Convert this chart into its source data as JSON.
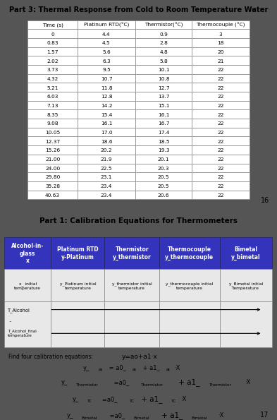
{
  "part3_title": "Part 3: Thermal Response from Cold to Room Temperature Water",
  "part3_headers": [
    "Time (s)",
    "Platinum RTD(°C)",
    "Thermistor(°C)",
    "Thermocouple (°C)"
  ],
  "part3_data": [
    [
      "0",
      "4.4",
      "0.9",
      "3"
    ],
    [
      "0.83",
      "4.5",
      "2.8",
      "18"
    ],
    [
      "1.57",
      "5.6",
      "4.8",
      "20"
    ],
    [
      "2.02",
      "6.3",
      "5.8",
      "21"
    ],
    [
      "3.73",
      "9.5",
      "10.1",
      "22"
    ],
    [
      "4.32",
      "10.7",
      "10.8",
      "22"
    ],
    [
      "5.21",
      "11.8",
      "12.7",
      "22"
    ],
    [
      "6.03",
      "12.8",
      "13.7",
      "22"
    ],
    [
      "7.13",
      "14.2",
      "15.1",
      "22"
    ],
    [
      "8.35",
      "15.4",
      "16.1",
      "22"
    ],
    [
      "9.08",
      "16.1",
      "16.7",
      "22"
    ],
    [
      "10.05",
      "17.0",
      "17.4",
      "22"
    ],
    [
      "12.37",
      "18.6",
      "18.5",
      "22"
    ],
    [
      "15.26",
      "20.2",
      "19.3",
      "22"
    ],
    [
      "21.00",
      "21.9",
      "20.1",
      "22"
    ],
    [
      "24.00",
      "22.5",
      "20.3",
      "22"
    ],
    [
      "29.80",
      "23.1",
      "20.5",
      "22"
    ],
    [
      "35.28",
      "23.4",
      "20.5",
      "22"
    ],
    [
      "40.63",
      "23.4",
      "20.6",
      "22"
    ]
  ],
  "part3_page": "16",
  "part1_title": "Part 1: Calibration Equations for Thermometers",
  "part1_col_headers": [
    "Alcohol-in-\nglass\nx",
    "Platinum RTD\ny-Platinum",
    "Thermistor\ny_thermistor",
    "Thermocouple\ny_thermocouple",
    "Bimetal\ny_bimetal"
  ],
  "part1_row1": [
    "x_ initial\ntemperature",
    "y_Platinum initial\ntemperature",
    "y_thermistor initial\ntemperature",
    "y_thermocouple initial\ntemperature",
    "y_Bimetal initial\ntemperature"
  ],
  "part1_page": "17",
  "header_bg": "#3333bb",
  "header_fg": "#ffffff",
  "panel_bg": "#f0f0f0",
  "panel2_bg": "#ffffff",
  "outer_bg": "#555555",
  "table_border": "#888888",
  "row_bg": "#e8e8e8"
}
